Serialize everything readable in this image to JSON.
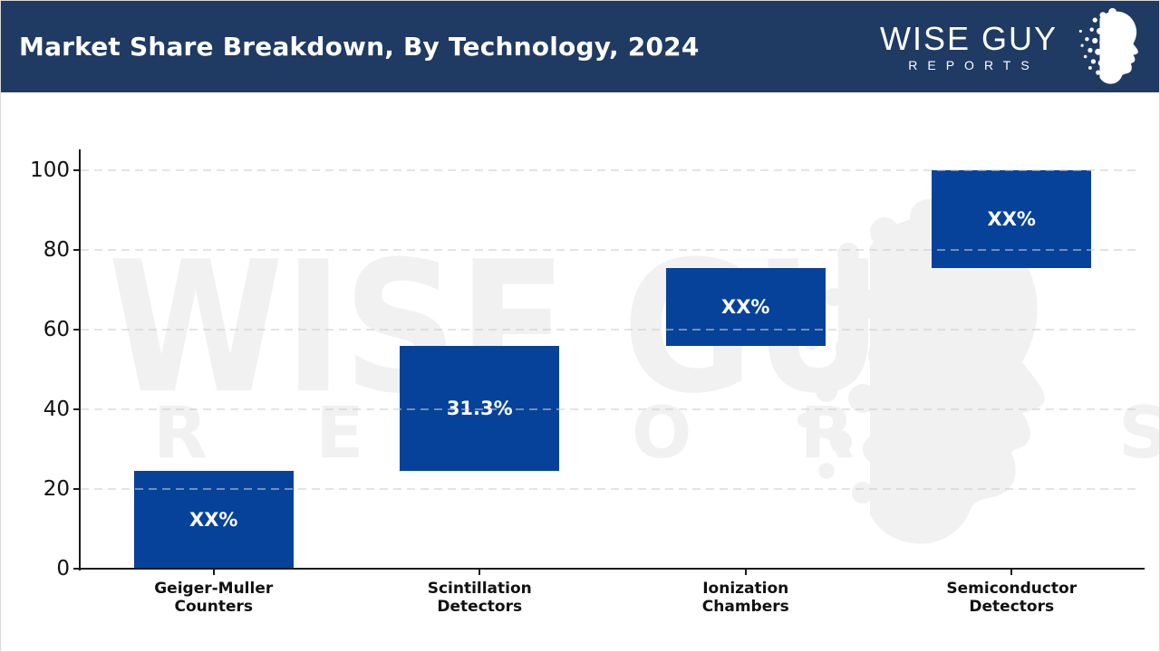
{
  "header": {
    "title": "Market Share Breakdown, By Technology, 2024",
    "bg_color": "#1f3a63",
    "logo": {
      "line1": "WISE GUY",
      "line2": "REPORTS"
    }
  },
  "watermark": {
    "line1": "WISE GUY",
    "line2": "R E P O R T S"
  },
  "chart_data": {
    "type": "bar",
    "subtype": "waterfall",
    "title": "Market Share Breakdown, By Technology, 2024",
    "xlabel": "",
    "ylabel": "",
    "ylim": [
      0,
      105
    ],
    "yticks": [
      0,
      20,
      40,
      60,
      80,
      100
    ],
    "grid": "horizontal-dashed",
    "legend": "none",
    "bar_color": "#06429a",
    "categories": [
      "Geiger-Muller Counters",
      "Scintillation Detectors",
      "Ionization Chambers",
      "Semiconductor Detectors"
    ],
    "category_lines": [
      [
        "Geiger-Muller",
        "Counters"
      ],
      [
        "Scintillation",
        "Detectors"
      ],
      [
        "Ionization",
        "Chambers"
      ],
      [
        "Semiconductor",
        "Detectors"
      ]
    ],
    "segments": [
      {
        "category": "Geiger-Muller Counters",
        "start": 0,
        "end": 24.5,
        "value_label": "XX%"
      },
      {
        "category": "Scintillation Detectors",
        "start": 24.5,
        "end": 55.8,
        "value_label": "31.3%",
        "value": 31.3
      },
      {
        "category": "Ionization Chambers",
        "start": 55.8,
        "end": 75.5,
        "value_label": "XX%"
      },
      {
        "category": "Semiconductor Detectors",
        "start": 75.5,
        "end": 100,
        "value_label": "XX%"
      }
    ]
  }
}
